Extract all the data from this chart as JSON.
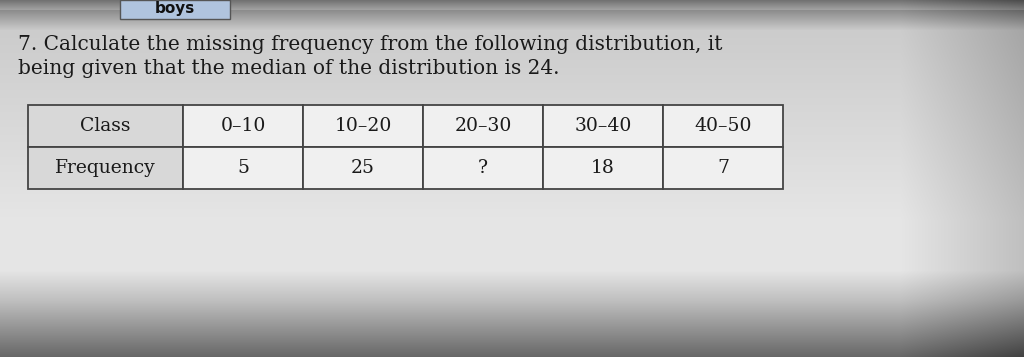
{
  "title_line1": "7. Calculate the missing frequency from the following distribution, it",
  "title_line2": "being given that the median of the distribution is 24.",
  "boys_label": "boys",
  "header_row": [
    "Class",
    "0–10",
    "10–20",
    "20–30",
    "30–40",
    "40–50"
  ],
  "data_row": [
    "Frequency",
    "5",
    "25",
    "?",
    "18",
    "7"
  ],
  "text_color": "#1a1a1a",
  "title_fontsize": 14.5,
  "table_fontsize": 13.5,
  "border_color": "#444444",
  "cell_bg_header_col": "#d8d8d8",
  "cell_bg_data": "#f0f0f0",
  "page_bg_top": "#888888",
  "page_bg_mid": "#e8e8e8",
  "page_bg_white": "#f5f5f5"
}
